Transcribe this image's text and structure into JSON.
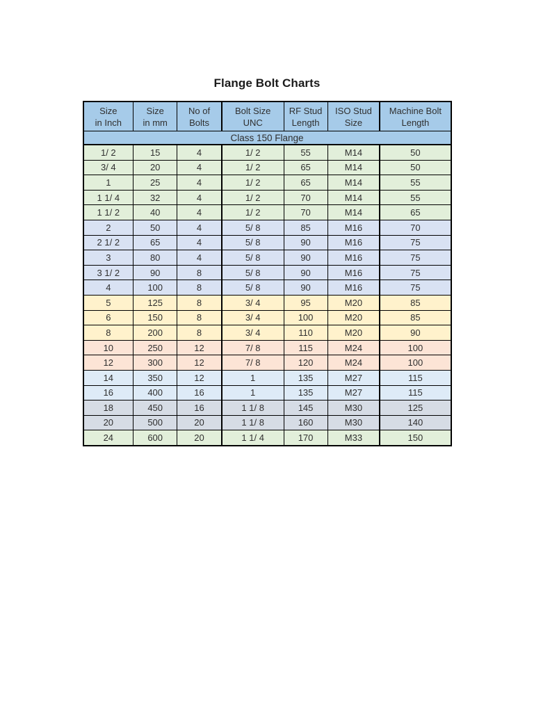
{
  "title": "Flange Bolt Charts",
  "colors": {
    "header_blue": "#a6cbe9",
    "green": "#e2efda",
    "lavender": "#d9e2f3",
    "yellow": "#fff2cc",
    "pink": "#fce4d6",
    "lightblue": "#deebf7",
    "gray": "#d6dce5",
    "border": "#000000",
    "text": "#2f2f2f"
  },
  "table": {
    "section_title": "Class 150 Flange",
    "headers": [
      {
        "key": "size-inch",
        "lines": [
          "Size",
          "in Inch"
        ]
      },
      {
        "key": "size-mm",
        "lines": [
          "Size",
          "in mm"
        ]
      },
      {
        "key": "no-of-bolts",
        "lines": [
          "No of",
          "Bolts"
        ]
      },
      {
        "key": "bolt-size-unc",
        "lines": [
          "Bolt Size",
          "UNC"
        ]
      },
      {
        "key": "rf-stud-length",
        "lines": [
          "RF Stud",
          "Length"
        ]
      },
      {
        "key": "iso-stud-size",
        "lines": [
          "ISO Stud",
          "Size"
        ]
      },
      {
        "key": "machine-bolt-length",
        "lines": [
          "Machine Bolt",
          "Length"
        ]
      }
    ],
    "rows": [
      {
        "group": "green",
        "cells": [
          "1/ 2",
          "15",
          "4",
          "1/ 2",
          "55",
          "M14",
          "50"
        ]
      },
      {
        "group": "green",
        "cells": [
          "3/ 4",
          "20",
          "4",
          "1/ 2",
          "65",
          "M14",
          "50"
        ]
      },
      {
        "group": "green",
        "cells": [
          "1",
          "25",
          "4",
          "1/ 2",
          "65",
          "M14",
          "55"
        ]
      },
      {
        "group": "green",
        "cells": [
          "1 1/ 4",
          "32",
          "4",
          "1/ 2",
          "70",
          "M14",
          "55"
        ]
      },
      {
        "group": "green",
        "cells": [
          "1 1/ 2",
          "40",
          "4",
          "1/ 2",
          "70",
          "M14",
          "65"
        ]
      },
      {
        "group": "lavender",
        "cells": [
          "2",
          "50",
          "4",
          "5/ 8",
          "85",
          "M16",
          "70"
        ]
      },
      {
        "group": "lavender",
        "cells": [
          "2 1/ 2",
          "65",
          "4",
          "5/ 8",
          "90",
          "M16",
          "75"
        ]
      },
      {
        "group": "lavender",
        "cells": [
          "3",
          "80",
          "4",
          "5/ 8",
          "90",
          "M16",
          "75"
        ]
      },
      {
        "group": "lavender",
        "cells": [
          "3 1/ 2",
          "90",
          "8",
          "5/ 8",
          "90",
          "M16",
          "75"
        ]
      },
      {
        "group": "lavender",
        "cells": [
          "4",
          "100",
          "8",
          "5/ 8",
          "90",
          "M16",
          "75"
        ]
      },
      {
        "group": "yellow",
        "cells": [
          "5",
          "125",
          "8",
          "3/ 4",
          "95",
          "M20",
          "85"
        ]
      },
      {
        "group": "yellow",
        "cells": [
          "6",
          "150",
          "8",
          "3/ 4",
          "100",
          "M20",
          "85"
        ]
      },
      {
        "group": "yellow",
        "cells": [
          "8",
          "200",
          "8",
          "3/ 4",
          "110",
          "M20",
          "90"
        ]
      },
      {
        "group": "pink",
        "cells": [
          "10",
          "250",
          "12",
          "7/ 8",
          "115",
          "M24",
          "100"
        ]
      },
      {
        "group": "pink",
        "cells": [
          "12",
          "300",
          "12",
          "7/ 8",
          "120",
          "M24",
          "100"
        ]
      },
      {
        "group": "lightblue",
        "cells": [
          "14",
          "350",
          "12",
          "1",
          "135",
          "M27",
          "115"
        ]
      },
      {
        "group": "lightblue",
        "cells": [
          "16",
          "400",
          "16",
          "1",
          "135",
          "M27",
          "115"
        ]
      },
      {
        "group": "gray",
        "cells": [
          "18",
          "450",
          "16",
          "1 1/ 8",
          "145",
          "M30",
          "125"
        ]
      },
      {
        "group": "gray",
        "cells": [
          "20",
          "500",
          "20",
          "1 1/ 8",
          "160",
          "M30",
          "140"
        ]
      },
      {
        "group": "green",
        "cells": [
          "24",
          "600",
          "20",
          "1 1/ 4",
          "170",
          "M33",
          "150"
        ]
      }
    ]
  }
}
